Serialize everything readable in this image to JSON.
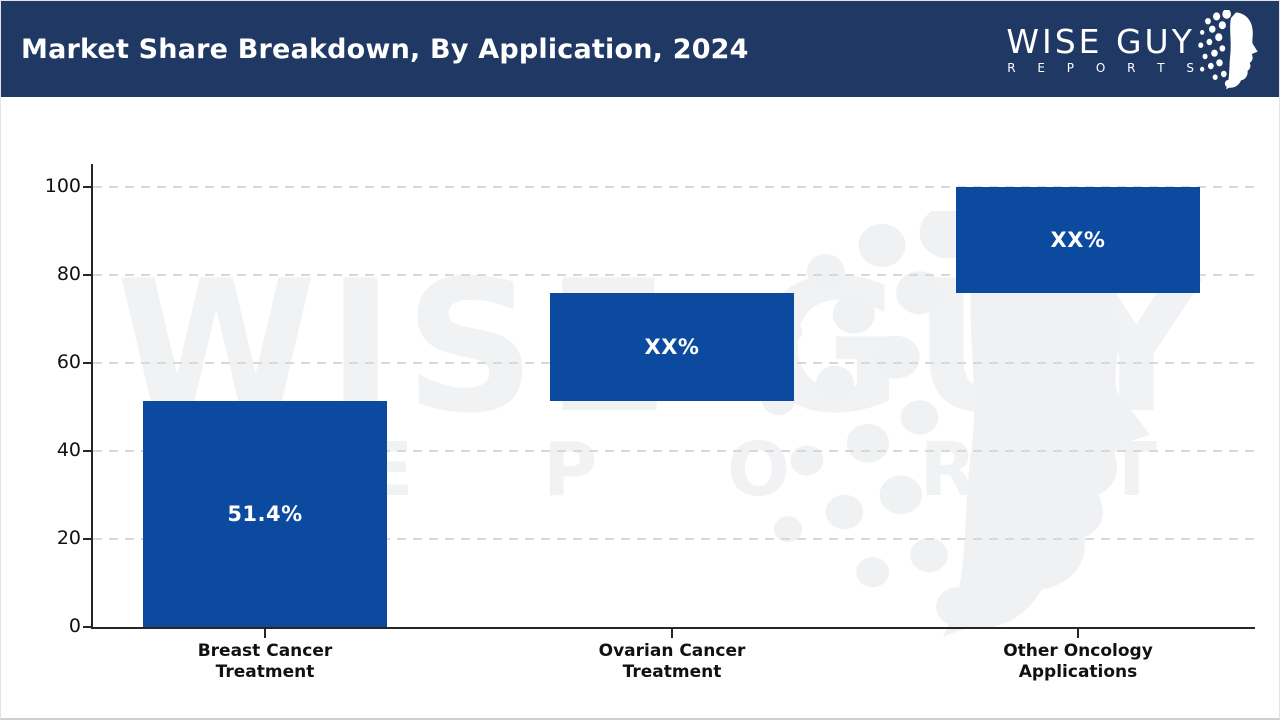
{
  "header": {
    "title": "Market Share Breakdown, By Application, 2024",
    "logo": {
      "wordmark": "WISE GUY",
      "subtext": "R E P O R T S"
    }
  },
  "watermark": {
    "line1": "WISE GUY",
    "line2": "R E P O R T S"
  },
  "chart_data": {
    "type": "bar",
    "variant": "waterfall",
    "title": "Market Share Breakdown, By Application, 2024",
    "categories": [
      [
        "Breast Cancer",
        "Treatment"
      ],
      [
        "Ovarian Cancer",
        "Treatment"
      ],
      [
        "Other Oncology",
        "Applications"
      ]
    ],
    "series": [
      {
        "name": "Market share (%)",
        "segments": [
          {
            "base": 0,
            "top": 51.4,
            "label": "51.4%"
          },
          {
            "base": 51.4,
            "top": 76,
            "label": "XX%"
          },
          {
            "base": 76,
            "top": 100,
            "label": "XX%"
          }
        ]
      }
    ],
    "xlabel": "",
    "ylabel": "",
    "yticks": [
      0,
      20,
      40,
      60,
      80,
      100
    ],
    "ylim": [
      0,
      105
    ],
    "grid": {
      "horizontal": true,
      "style": "dashed",
      "color": "#d9d9d9"
    },
    "legend": "none",
    "colors": {
      "bar": "#0b4a9e",
      "bar_label": "#ffffff",
      "axis": "#262626",
      "header_bg": "#1f3864"
    }
  }
}
